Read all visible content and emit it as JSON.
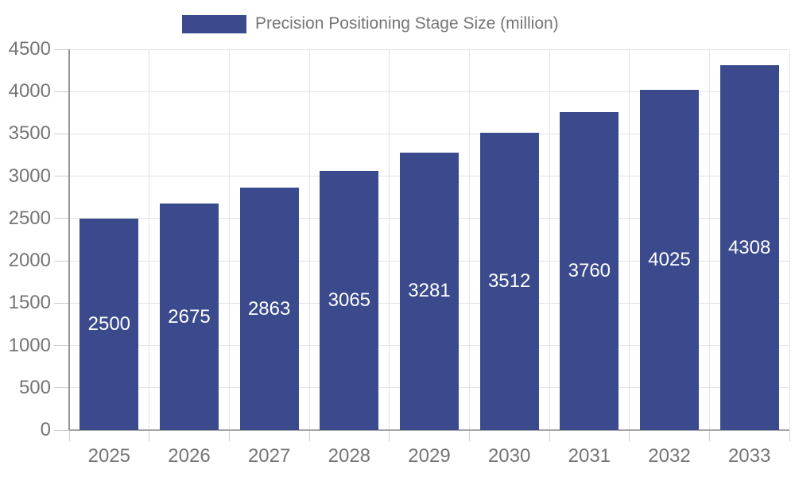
{
  "legend": {
    "label": "Precision Positioning Stage Size (million)"
  },
  "chart_data": {
    "type": "bar",
    "title": "Precision Positioning Stage Size (million)",
    "categories": [
      "2025",
      "2026",
      "2027",
      "2028",
      "2029",
      "2030",
      "2031",
      "2032",
      "2033"
    ],
    "values": [
      2500,
      2675,
      2863,
      3065,
      3281,
      3512,
      3760,
      4025,
      4308
    ],
    "xlabel": "",
    "ylabel": "",
    "ylim": [
      0,
      4500
    ],
    "yticks": [
      0,
      500,
      1000,
      1500,
      2000,
      2500,
      3000,
      3500,
      4000,
      4500
    ],
    "grid": true,
    "legend_position": "top",
    "bar_labels_visible": true,
    "colors": {
      "bar": "#3A4A8C",
      "bar_label": "#FFFFFF",
      "axis_text": "#757575",
      "legend_text": "#757575",
      "gridline": "#E3E3E3",
      "axis_line_y": "#969696",
      "axis_line_x": "#A6A6A6",
      "tick": "#CDCDCD",
      "background": "#FFFFFF"
    }
  }
}
